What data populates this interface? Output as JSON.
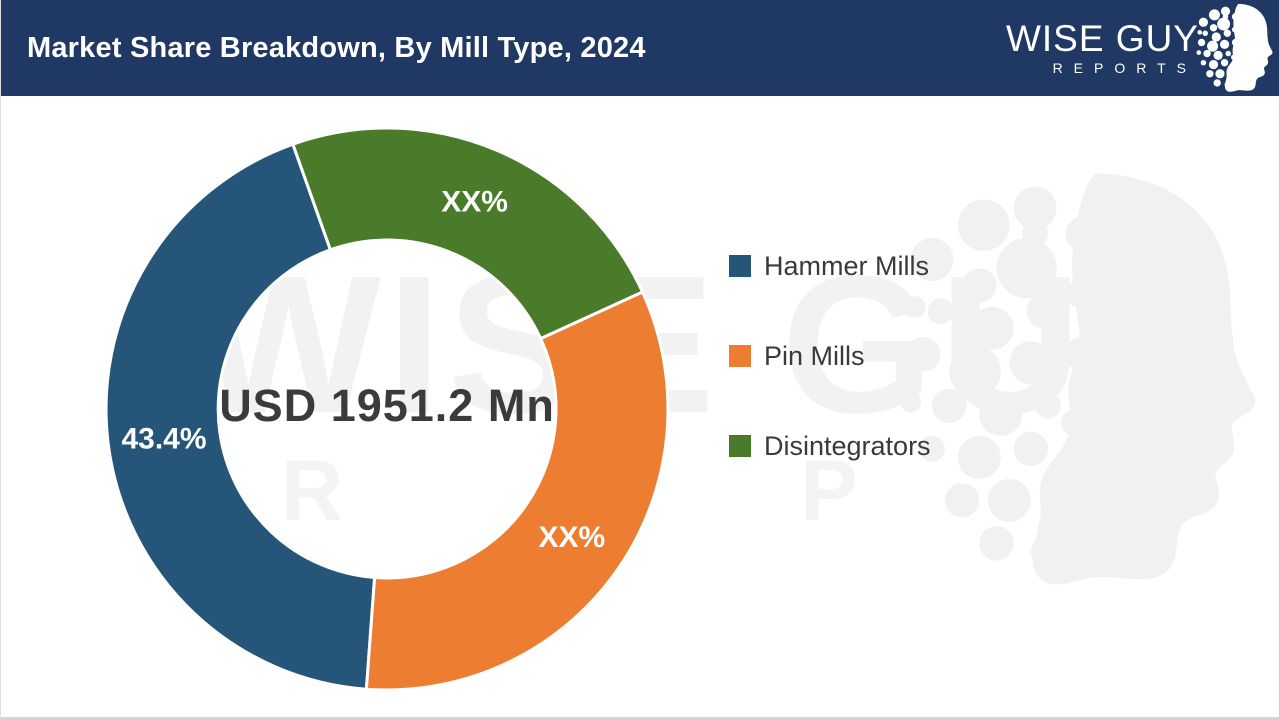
{
  "header": {
    "title": "Market Share Breakdown, By Mill Type, 2024",
    "bg_color": "#1F3864",
    "logo": {
      "line1": "WISE GUY",
      "line2": "REPORTS"
    }
  },
  "watermark": {
    "line1": "WISE GUY",
    "line2": "R E P O R T S"
  },
  "chart_data": {
    "type": "pie",
    "variant": "donut",
    "title": "Market Share Breakdown, By Mill Type, 2024",
    "center_label": "USD 1951.2 Mn",
    "slices": [
      {
        "name": "Hammer Mills",
        "display_label": "43.4%",
        "value_pct": 43.4,
        "color": "#255679"
      },
      {
        "name": "Pin Mills",
        "display_label": "XX%",
        "value_pct": 33.0,
        "color": "#ED7D31"
      },
      {
        "name": "Disintegrators",
        "display_label": "XX%",
        "value_pct": 23.6,
        "color": "#4A7B2B"
      }
    ],
    "legend_position": "right",
    "start_angle_deg": 184.2,
    "draw_order": [
      0,
      2,
      1
    ],
    "inner_radius_ratio": 0.6,
    "label_colors": "#ffffff"
  }
}
